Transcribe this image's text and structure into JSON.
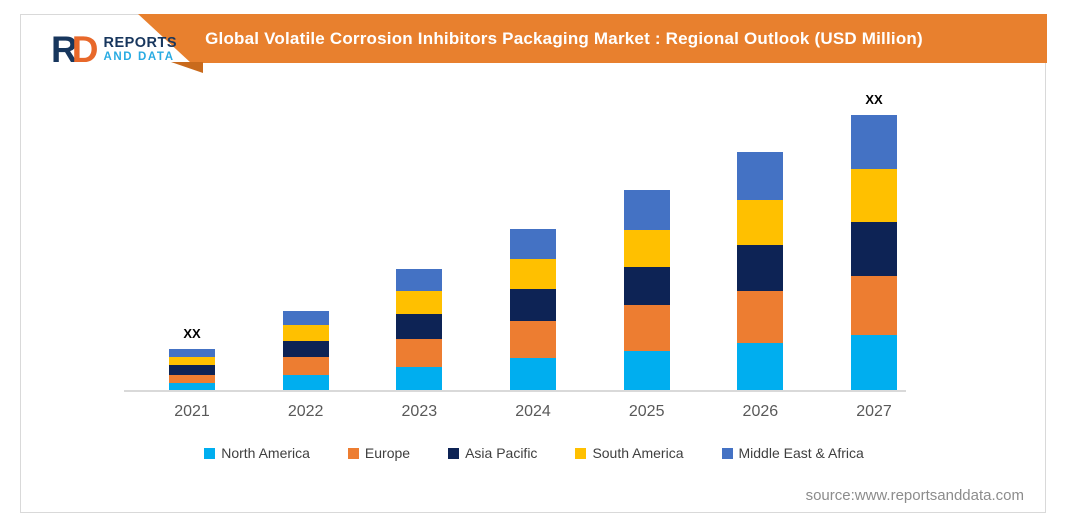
{
  "logo": {
    "mark_r": "R",
    "mark_d": "D",
    "line1": "REPORTS",
    "line2": "AND DATA"
  },
  "banner": {
    "title": "Global Volatile Corrosion Inhibitors Packaging Market : Regional Outlook (USD Million)",
    "bg_color": "#e8802e"
  },
  "chart_data": {
    "type": "bar",
    "stacked": true,
    "title": "Global Volatile Corrosion Inhibitors Packaging Market : Regional Outlook (USD Million)",
    "value_unit": "USD Million",
    "values_masked_as": "XX",
    "categories": [
      "2021",
      "2022",
      "2023",
      "2024",
      "2025",
      "2026",
      "2027"
    ],
    "series": [
      {
        "name": "North America",
        "color": "#00aeef",
        "values": [
          7,
          15,
          23,
          32,
          39,
          47,
          55
        ]
      },
      {
        "name": "Europe",
        "color": "#ed7d31",
        "values": [
          8,
          18,
          28,
          37,
          46,
          52,
          59
        ]
      },
      {
        "name": "Asia Pacific",
        "color": "#0d2355",
        "values": [
          10,
          16,
          25,
          32,
          38,
          46,
          54
        ]
      },
      {
        "name": "South America",
        "color": "#ffc000",
        "values": [
          8,
          16,
          23,
          30,
          37,
          45,
          53
        ]
      },
      {
        "name": "Middle East & Africa",
        "color": "#4472c4",
        "values": [
          8,
          14,
          22,
          30,
          40,
          48,
          54
        ]
      }
    ],
    "bar_labels": {
      "2021": "XX",
      "2027": "XX"
    },
    "legend_position": "bottom",
    "grid": false,
    "xlabel": "",
    "ylabel": ""
  },
  "footer": {
    "source": "source:www.reportsanddata.com"
  }
}
